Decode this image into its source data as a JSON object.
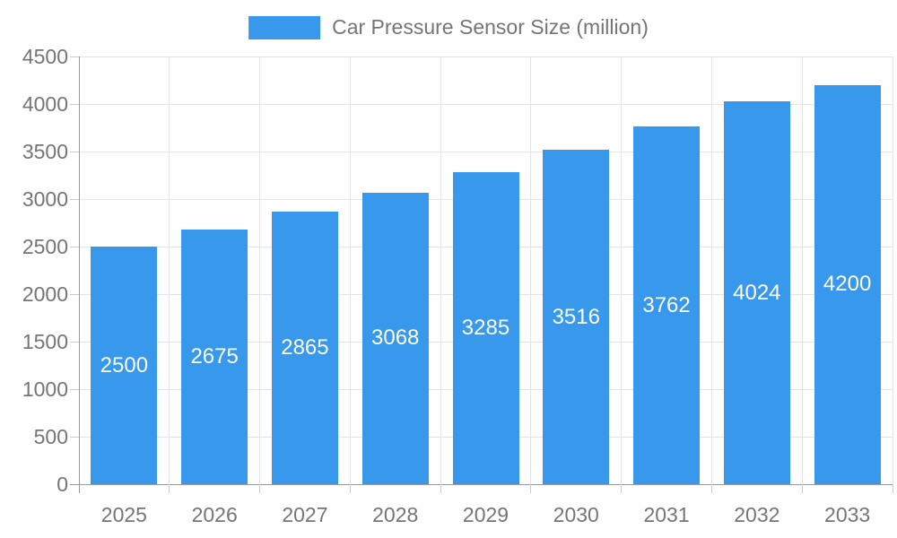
{
  "legend": {
    "label": "Car Pressure Sensor Size (million)"
  },
  "colors": {
    "bar": "#3898EC",
    "bar_label": "#FFFFFF",
    "axis_text": "#757575",
    "axis_line": "#9A9A9A",
    "grid_line": "#E4E4E4",
    "tick_line": "#CCCCCC",
    "background": "#FFFFFF"
  },
  "chart_data": {
    "type": "bar",
    "title": "Car Pressure Sensor Size (million)",
    "series_name": "Car Pressure Sensor Size (million)",
    "categories": [
      "2025",
      "2026",
      "2027",
      "2028",
      "2029",
      "2030",
      "2031",
      "2032",
      "2033"
    ],
    "values": [
      2500,
      2675,
      2865,
      3068,
      3285,
      3516,
      3762,
      4024,
      4200
    ],
    "xlabel": "",
    "ylabel": "",
    "ylim": [
      0,
      4500
    ],
    "ytick_step": 500,
    "yticks": [
      0,
      500,
      1000,
      1500,
      2000,
      2500,
      3000,
      3500,
      4000,
      4500
    ],
    "grid": true,
    "legend_position": "top-center",
    "value_label_position": "inside-middle"
  }
}
